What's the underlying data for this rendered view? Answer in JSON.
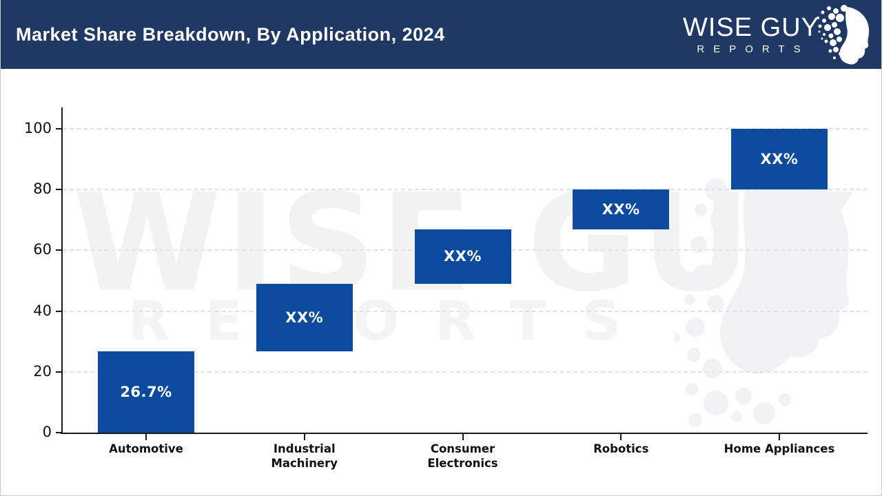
{
  "header": {
    "title": "Market Share Breakdown, By Application, 2024",
    "logo": {
      "line1": "WISE GUY",
      "line2": "REPORTS"
    }
  },
  "watermark": {
    "line1": "WISE GUY",
    "line2": "REPORTS"
  },
  "chart_data": {
    "type": "bar",
    "subtype": "waterfall-floating-bars",
    "title": "Market Share Breakdown, By Application, 2024",
    "categories": [
      "Automotive",
      "Industrial Machinery",
      "Consumer Electronics",
      "Robotics",
      "Home Appliances"
    ],
    "category_lines": [
      [
        "Automotive"
      ],
      [
        "Industrial",
        "Machinery"
      ],
      [
        "Consumer",
        "Electronics"
      ],
      [
        "Robotics"
      ],
      [
        "Home Appliances"
      ]
    ],
    "segments": [
      {
        "category": "Automotive",
        "start": 0,
        "end": 26.7,
        "label": "26.7%"
      },
      {
        "category": "Industrial Machinery",
        "start": 26.7,
        "end": 49,
        "label": "XX%"
      },
      {
        "category": "Consumer Electronics",
        "start": 49,
        "end": 67,
        "label": "XX%"
      },
      {
        "category": "Robotics",
        "start": 67,
        "end": 80,
        "label": "XX%"
      },
      {
        "category": "Home Appliances",
        "start": 80,
        "end": 100,
        "label": "XX%"
      }
    ],
    "xlabel": "",
    "ylabel": "",
    "ylim": [
      0,
      100
    ],
    "yticks": [
      0,
      20,
      40,
      60,
      80,
      100
    ],
    "grid": "horizontal-dashed",
    "legend": "none",
    "colors": {
      "bar": "#0c4a9e",
      "bar_label": "#ffffff",
      "header_bg": "#1f3864",
      "axis": "#1a1a1a",
      "gridline": "#e0e2e4",
      "watermark": "#f2f2f2"
    }
  }
}
